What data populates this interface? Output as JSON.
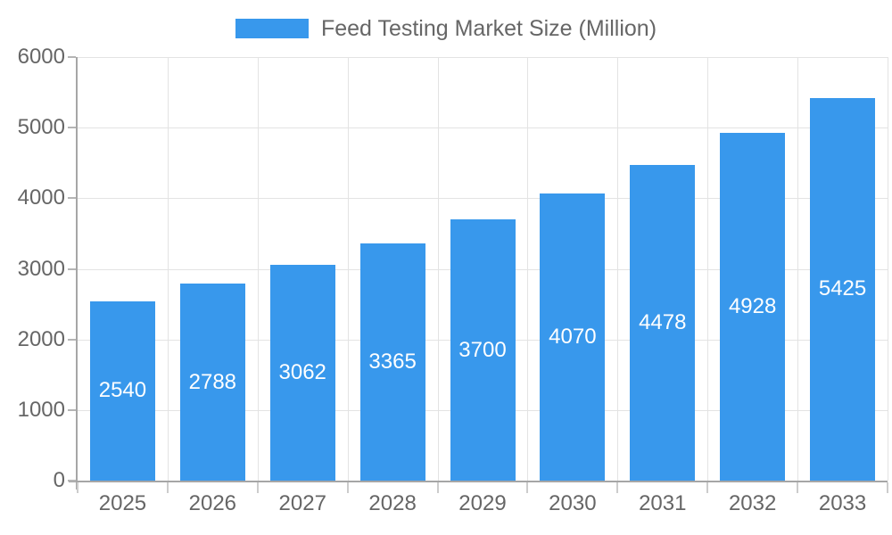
{
  "legend": {
    "label": "Feed Testing Market Size (Million)"
  },
  "colors": {
    "bar": "#3898EC",
    "bar_label": "#ffffff",
    "axis_text": "#666666",
    "gridline": "#e3e3e3",
    "axis_line": "#a6a6a6"
  },
  "chart_data": {
    "type": "bar",
    "title": "Feed Testing Market Size (Million)",
    "categories": [
      "2025",
      "2026",
      "2027",
      "2028",
      "2029",
      "2030",
      "2031",
      "2032",
      "2033"
    ],
    "values": [
      2540,
      2788,
      3062,
      3365,
      3700,
      4070,
      4478,
      4928,
      5425
    ],
    "series_name": "Feed Testing Market Size (Million)",
    "xlabel": "",
    "ylabel": "",
    "ylim": [
      0,
      6000
    ],
    "ytick_step": 1000,
    "yticks": [
      "0",
      "1000",
      "2000",
      "3000",
      "4000",
      "5000",
      "6000"
    ],
    "grid": true,
    "legend_position": "top",
    "value_labels": "centered-inside-bars"
  }
}
